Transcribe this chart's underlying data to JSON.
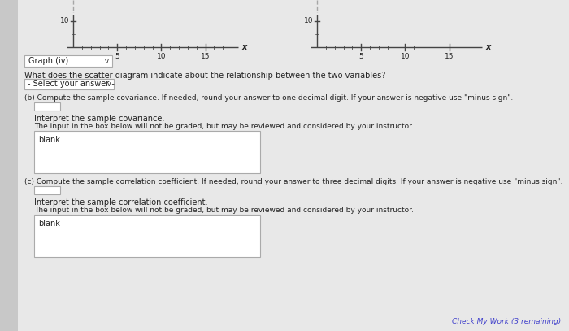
{
  "content_bg": "#e8e8e8",
  "white": "#ffffff",
  "border_color": "#aaaaaa",
  "text_color": "#222222",
  "axis_color": "#444444",
  "sidebar_color": "#c8c8c8",
  "graph_title": "Graph (iv)",
  "question_text": "What does the scatter diagram indicate about the relationship between the two variables?",
  "select_label": "- Select your answer - ",
  "part_b_text": "(b) Compute the sample covariance. If needed, round your answer to one decimal digit. If your answer is negative use \"minus sign\".",
  "interpret_covariance": "Interpret the sample covariance.",
  "not_graded_text": "The input in the box below will not be graded, but may be reviewed and considered by your instructor.",
  "blank": "blank",
  "part_c_text": "(c) Compute the sample correlation coefficient. If needed, round your answer to three decimal digits. If your answer is negative use \"minus sign\".",
  "interpret_corr": "Interpret the sample correlation coefficient.",
  "check_my_work": "Check My Work (3 remaining)",
  "axis1_ytick": "10",
  "axis2_ytick": "10",
  "axis_xticks": [
    5,
    10,
    15
  ],
  "axis_xlabel": "x",
  "link_color": "#4444cc"
}
